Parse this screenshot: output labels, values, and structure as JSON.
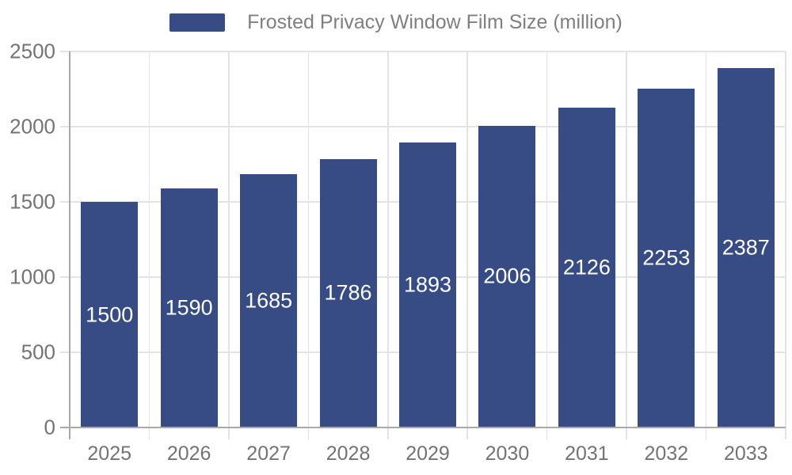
{
  "legend": {
    "label": "Frosted Privacy Window Film Size (million)"
  },
  "chart_data": {
    "type": "bar",
    "title": "Frosted Privacy Window Film Size (million)",
    "categories": [
      "2025",
      "2026",
      "2027",
      "2028",
      "2029",
      "2030",
      "2031",
      "2032",
      "2033"
    ],
    "values": [
      1500,
      1590,
      1685,
      1786,
      1893,
      2006,
      2126,
      2253,
      2387
    ],
    "series": [
      {
        "name": "Frosted Privacy Window Film Size (million)",
        "values": [
          1500,
          1590,
          1685,
          1786,
          1893,
          2006,
          2126,
          2253,
          2387
        ]
      }
    ],
    "xlabel": "",
    "ylabel": "",
    "ylim": [
      0,
      2500
    ],
    "yticks": [
      0,
      500,
      1000,
      1500,
      2000,
      2500
    ],
    "grid": true,
    "legend_position": "top-center",
    "bar_label_position": "inside-center"
  },
  "colors": {
    "bar": "#374B85",
    "bar_label": "#FFFFFF",
    "axis_line": "#A9A9A9",
    "grid_line": "#E3E3E3",
    "axis_tick_label": "#737373",
    "legend_text": "#7F7F7F",
    "background": "#FFFFFF"
  }
}
